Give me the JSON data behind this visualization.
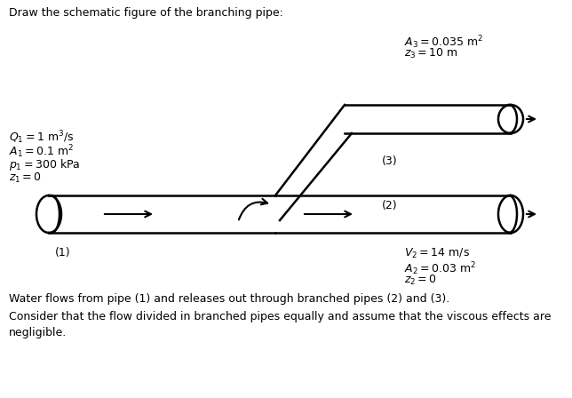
{
  "title": "Draw the schematic figure of the branching pipe:",
  "left_labels": [
    "$Q_1 = 1\\ \\mathrm{m}^3\\!/\\mathrm{s}$",
    "$A_1 = 0.1\\ \\mathrm{m}^2$",
    "$p_1 = 300\\ \\mathrm{kPa}$",
    "$z_1 = 0$"
  ],
  "right_top_labels": [
    "$A_3 = 0.035\\ \\mathrm{m}^2$",
    "$z_3 = 10\\ \\mathrm{m}$"
  ],
  "right_bottom_labels": [
    "$V_2 = 14\\ \\mathrm{m/s}$",
    "$A_2 = 0.03\\ \\mathrm{m}^2$",
    "$z_2 = 0$"
  ],
  "pipe1_label": "(1)",
  "pipe2_label": "(2)",
  "pipe3_label": "(3)",
  "bottom_text1": "Water flows from pipe (1) and releases out through branched pipes (2) and (3).",
  "bottom_text2": "Consider that the flow divided in branched pipes equally and assume that the viscous effects are",
  "bottom_text3": "negligible.",
  "bg_color": "#ffffff",
  "pipe_color": "#000000",
  "pipe_lw": 1.8,
  "fs": 9.0
}
